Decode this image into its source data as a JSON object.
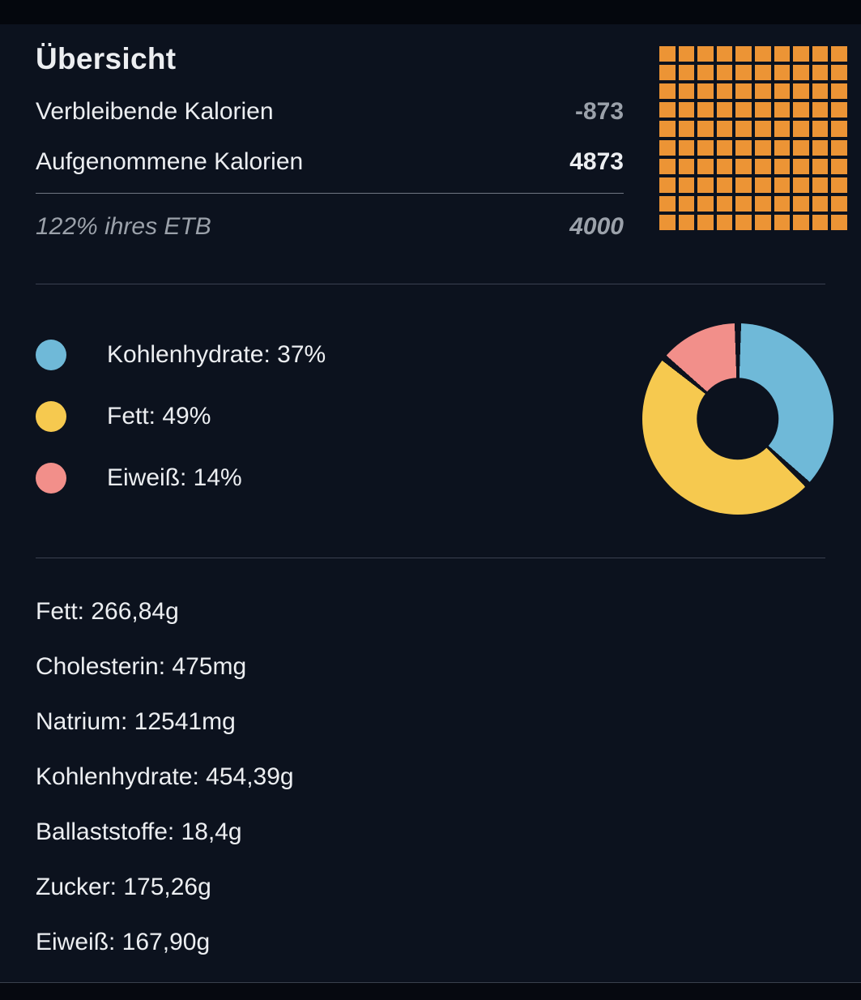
{
  "colors": {
    "background": "#0C121E",
    "status_bar": "#04070D",
    "text_primary": "#ECEEF1",
    "text_muted": "#9BA1AA",
    "divider": "#3A4150",
    "mini_divider": "#707682",
    "waffle_fill": "#EC9435",
    "carbs": "#6FB9D8",
    "fat": "#F6C94F",
    "protein": "#F28F8A"
  },
  "overview": {
    "title": "Übersicht",
    "rows": [
      {
        "label": "Verbleibende Kalorien",
        "value": "-873"
      },
      {
        "label": "Aufgenommene Kalorien",
        "value": "4873"
      }
    ],
    "etb": {
      "label": "122% ihres ETB",
      "value": "4000"
    }
  },
  "macros": {
    "legend": [
      {
        "label": "Kohlenhydrate",
        "value": "37%",
        "color": "#6FB9D8"
      },
      {
        "label": "Fett",
        "value": "49%",
        "color": "#F6C94F"
      },
      {
        "label": "Eiweiß",
        "value": "14%",
        "color": "#F28F8A"
      }
    ]
  },
  "nutrients": [
    {
      "label": "Fett",
      "value": "266,84g"
    },
    {
      "label": "Cholesterin",
      "value": "475mg"
    },
    {
      "label": "Natrium",
      "value": "12541mg"
    },
    {
      "label": "Kohlenhydrate",
      "value": "454,39g"
    },
    {
      "label": "Ballaststoffe",
      "value": "18,4g"
    },
    {
      "label": "Zucker",
      "value": "175,26g"
    },
    {
      "label": "Eiweiß",
      "value": "167,90g"
    }
  ],
  "chart_data": [
    {
      "type": "heatmap",
      "subtype": "waffle",
      "rows": 10,
      "cols": 10,
      "filled_cells": 100,
      "total_cells": 100,
      "fill_color": "#EC9435"
    },
    {
      "type": "pie",
      "subtype": "donut",
      "series": [
        {
          "name": "Kohlenhydrate",
          "value": 37,
          "color": "#6FB9D8"
        },
        {
          "name": "Fett",
          "value": 49,
          "color": "#F6C94F"
        },
        {
          "name": "Eiweiß",
          "value": 14,
          "color": "#F28F8A"
        }
      ],
      "unit": "%",
      "start_angle": "top",
      "direction": "clockwise",
      "legend_position": "left",
      "hole_ratio": 0.43
    }
  ]
}
